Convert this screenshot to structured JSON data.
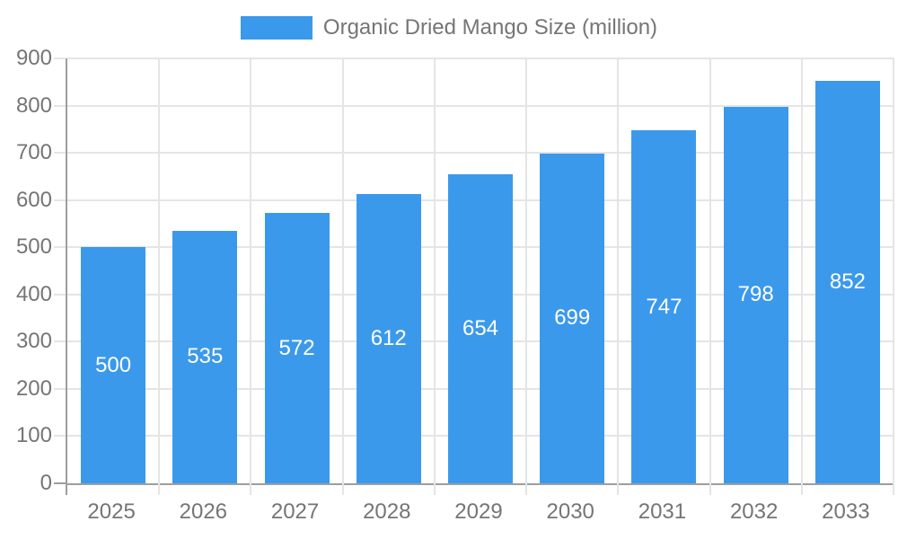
{
  "colors": {
    "bar": "#3B99EC",
    "grid": "#E5E5E5",
    "axis": "#9E9E9E",
    "tick_label": "#757575",
    "value_label": "#FFFFFF"
  },
  "chart_data": {
    "type": "bar",
    "title": "Organic Dried Mango Size (million)",
    "categories": [
      "2025",
      "2026",
      "2027",
      "2028",
      "2029",
      "2030",
      "2031",
      "2032",
      "2033"
    ],
    "series": [
      {
        "name": "Organic Dried Mango Size (million)",
        "values": [
          500,
          535,
          572,
          612,
          654,
          699,
          747,
          798,
          852
        ]
      }
    ],
    "xlabel": "",
    "ylabel": "",
    "ylim": [
      0,
      900
    ],
    "ytick_step": 100,
    "yticks": [
      0,
      100,
      200,
      300,
      400,
      500,
      600,
      700,
      800,
      900
    ],
    "grid": true,
    "legend_position": "top",
    "value_labels_position": "center-of-bar"
  }
}
